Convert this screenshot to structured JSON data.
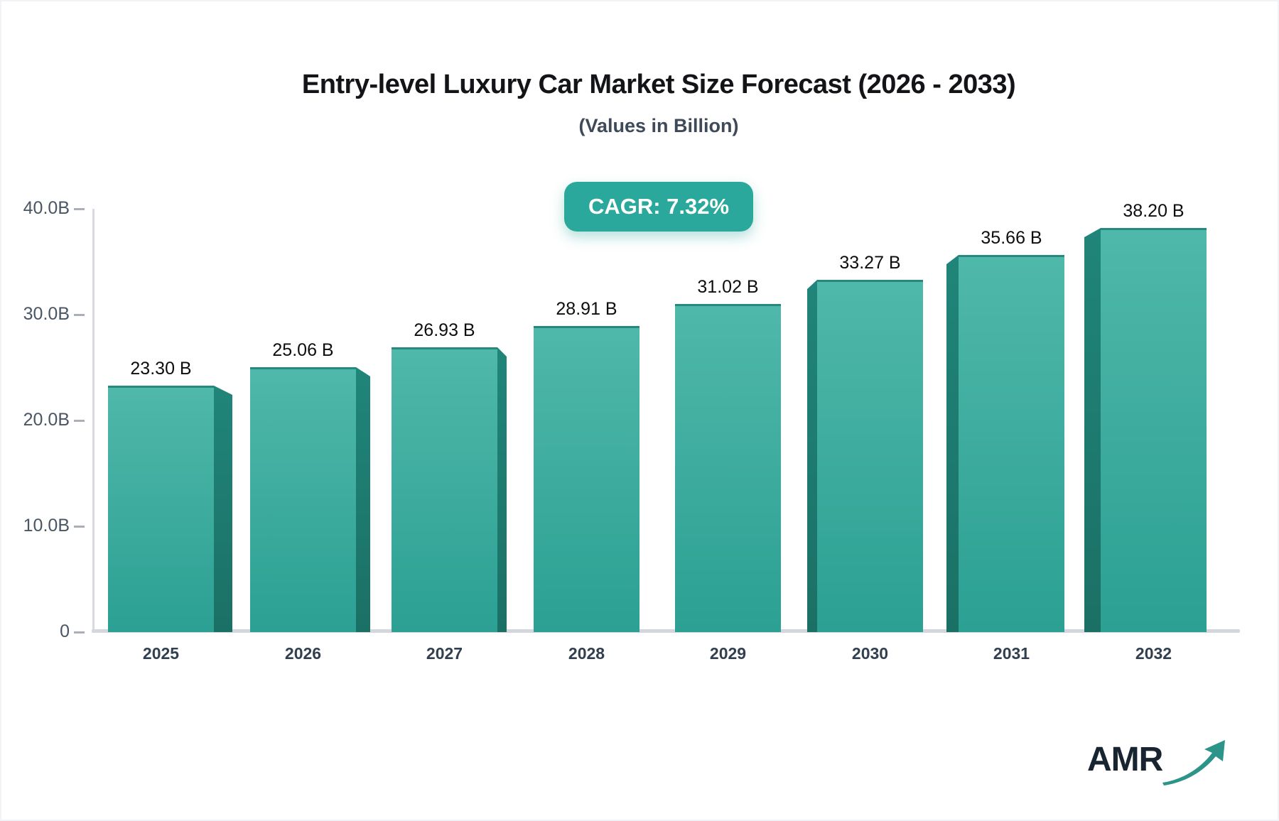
{
  "header": {
    "title": "Entry-level Luxury Car Market Size Forecast (2026 - 2033)",
    "subtitle": "(Values in Billion)",
    "cagr_label": "CAGR: 7.32%"
  },
  "chart_data": {
    "type": "bar",
    "title": "Entry-level Luxury Car Market Size Forecast (2026 - 2033)",
    "subtitle": "(Values in Billion)",
    "annotation": "CAGR: 7.32%",
    "categories": [
      "2025",
      "2026",
      "2027",
      "2028",
      "2029",
      "2030",
      "2031",
      "2032"
    ],
    "values": [
      23.3,
      25.06,
      26.93,
      28.91,
      31.02,
      33.27,
      35.66,
      38.2
    ],
    "bar_labels": [
      "23.30 B",
      "25.06 B",
      "26.93 B",
      "28.91 B",
      "31.02 B",
      "33.27 B",
      "35.66 B",
      "38.20 B"
    ],
    "xlabel": "",
    "ylabel": "",
    "ylim": [
      0,
      40
    ],
    "yticks": [
      {
        "value": 40,
        "label": "40.0B"
      },
      {
        "value": 30,
        "label": "30.0B"
      },
      {
        "value": 20,
        "label": "20.0B"
      },
      {
        "value": 10,
        "label": "10.0B"
      },
      {
        "value": 0,
        "label": "0"
      }
    ],
    "grid": false,
    "legend_position": "none",
    "colors": {
      "bar_face_top": "#4fb8aa",
      "bar_face_bottom": "#2ba093",
      "bar_side_top": "#20857a",
      "bar_side_bottom": "#1b7065",
      "bar_top_edge": "#258a7d",
      "badge_background": "#2aa89b",
      "axis_line": "#d5d8de",
      "tick_label": "#4a5663",
      "year_label": "#323f4e"
    }
  },
  "footer": {
    "logo_text": "AMR"
  }
}
